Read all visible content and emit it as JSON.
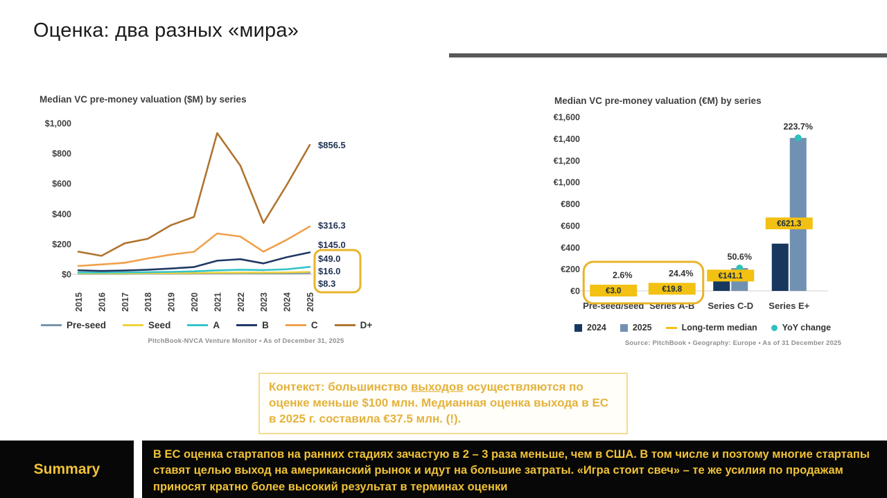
{
  "slide": {
    "title": "Оценка: два разных «мира»"
  },
  "colors": {
    "accent_gold": "#E9B428",
    "chip_yellow": "#F2C113",
    "navy_2024": "#17375E",
    "steel_2025": "#7191B2",
    "teal_dot": "#2FBFBF",
    "baseline_gray": "#CFCFCF",
    "black_bar": "#070707"
  },
  "chart_data": [
    {
      "type": "line",
      "title": "Median VC pre-money valuation ($M) by series",
      "x": [
        "2015",
        "2016",
        "2017",
        "2018",
        "2019",
        "2020",
        "2021",
        "2022",
        "2023",
        "2024",
        "2025"
      ],
      "ylim": [
        0,
        1000
      ],
      "yticks": [
        "$0",
        "$200",
        "$400",
        "$600",
        "$800",
        "$1,000"
      ],
      "grid": "off",
      "legend_position": "bottom",
      "series": [
        {
          "name": "Pre-seed",
          "color": "#7A93AC",
          "values": [
            3,
            3,
            3,
            4,
            4,
            5,
            6,
            7,
            6,
            6,
            8.3
          ],
          "end_label": "$8.3"
        },
        {
          "name": "Seed",
          "color": "#EDD23E",
          "values": [
            6,
            6,
            6,
            7,
            7,
            8,
            10,
            11,
            11,
            12,
            16
          ],
          "end_label": "$16.0"
        },
        {
          "name": "A",
          "color": "#35C4C8",
          "values": [
            11,
            11,
            12,
            14,
            16,
            19,
            26,
            30,
            28,
            33,
            49
          ],
          "end_label": "$49.0"
        },
        {
          "name": "B",
          "color": "#1F3864",
          "values": [
            26,
            22,
            25,
            30,
            38,
            48,
            90,
            100,
            72,
            113,
            145
          ],
          "end_label": "$145.0"
        },
        {
          "name": "C",
          "color": "#F0A04B",
          "values": [
            55,
            65,
            76,
            105,
            130,
            149,
            270,
            250,
            150,
            228,
            316.3
          ],
          "end_label": "$316.3"
        },
        {
          "name": "D+",
          "color": "#B0742F",
          "values": [
            150,
            122,
            205,
            235,
            325,
            380,
            935,
            720,
            340,
            590,
            856.5
          ],
          "end_label": "$856.5"
        }
      ],
      "highlighted_end_labels": [
        "$49.0",
        "$16.0",
        "$8.3"
      ],
      "source": "PitchBook-NVCA Venture Monitor  •  As of December 31, 2025"
    },
    {
      "type": "bar",
      "title": "Median VC pre-money valuation (€M) by series",
      "categories": [
        "Pre-seed/seed",
        "Series A-B",
        "Series C-D",
        "Series E+"
      ],
      "ylim": [
        0,
        1600
      ],
      "yticks": [
        "€0",
        "€200",
        "€400",
        "€600",
        "€800",
        "€1,000",
        "€1,200",
        "€1,400",
        "€1,600"
      ],
      "grid": "off",
      "series": [
        {
          "name": "2024",
          "color": "#17375E",
          "values": [
            3.2,
            16.0,
            139.4,
            435
          ]
        },
        {
          "name": "2025",
          "color": "#7191B2",
          "values": [
            3.3,
            19.9,
            210,
            1408
          ]
        }
      ],
      "long_term_median": {
        "name": "Long-term median",
        "color": "#F2C113",
        "values": [
          3.0,
          19.8,
          141.1,
          621.3
        ],
        "labels": [
          "€3.0",
          "€19.8",
          "€141.1",
          "€621.3"
        ]
      },
      "yoy_change": {
        "name": "YoY change",
        "color": "#2FBFBF",
        "labels": [
          "2.6%",
          "24.4%",
          "50.6%",
          "223.7%"
        ]
      },
      "highlight_categories": [
        0,
        1
      ],
      "legend": [
        {
          "label": "2024",
          "type": "square",
          "color": "#17375E"
        },
        {
          "label": "2025",
          "type": "square",
          "color": "#7191B2"
        },
        {
          "label": "Long-term median",
          "type": "line",
          "color": "#F2C113"
        },
        {
          "label": "YoY change",
          "type": "dot",
          "color": "#2FBFBF"
        }
      ],
      "source": "Source: PitchBook  •  Geography: Europe  •  As of 31 December 2025"
    }
  ],
  "context_note": {
    "prefix": "Контекст: большинство ",
    "underlined": "выходов",
    "suffix": " осуществляются по оценке меньше $100 млн. Медианная оценка выхода в ЕС в 2025 г. составила €37.5 млн. (!)."
  },
  "summary": {
    "label": "Summary",
    "text": "В ЕС оценка стартапов на ранних стадиях зачастую в 2 – 3 раза меньше, чем в США. В том числе и поэтому многие стартапы ставят целью выход на американский рынок и идут на большие затраты. «Игра стоит свеч» – те же усилия по продажам приносят кратно более высокий результат в терминах оценки"
  }
}
